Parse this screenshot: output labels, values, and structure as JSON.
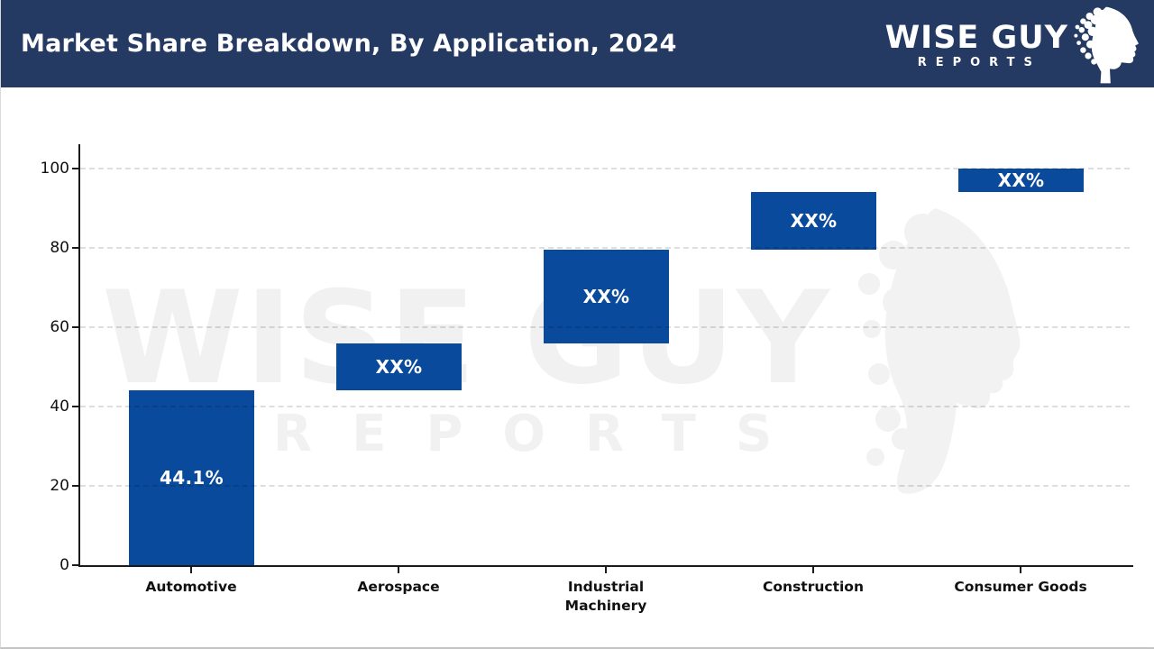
{
  "header": {
    "title": "Market Share Breakdown, By Application, 2024",
    "logo": {
      "name": "WISE GUY",
      "sub": "REPORTS"
    }
  },
  "watermark": {
    "line1": "WISE GUY",
    "line2": "REPORTS"
  },
  "colors": {
    "header_bg": "#243a63",
    "bar": "#0a4a9c",
    "bar_label": "#ffffff",
    "axis": "#1a1a1a",
    "gridline": "#d9d9d9",
    "watermark": "#f1f1f1"
  },
  "chart_data": {
    "type": "bar",
    "subtype": "waterfall",
    "title": "Market Share Breakdown, By Application, 2024",
    "unit": "%",
    "ylim": [
      0,
      100
    ],
    "yticks": [
      "0",
      "20",
      "40",
      "60",
      "80",
      "100"
    ],
    "grid": "horizontal-dashed",
    "legend": "none",
    "categories": [
      "Automotive",
      "Aerospace",
      "Industrial Machinery",
      "Construction",
      "Consumer Goods"
    ],
    "x_tick_label_lines": [
      [
        "Automotive"
      ],
      [
        "Aerospace"
      ],
      [
        "Industrial",
        "Machinery"
      ],
      [
        "Construction"
      ],
      [
        "Consumer Goods"
      ]
    ],
    "segments": [
      {
        "category": "Automotive",
        "start": 0,
        "end": 44.1,
        "value": 44.1,
        "label": "44.1%"
      },
      {
        "category": "Aerospace",
        "start": 44.1,
        "end": 55.9,
        "value": 11.8,
        "label": "XX%"
      },
      {
        "category": "Industrial Machinery",
        "start": 55.9,
        "end": 79.5,
        "value": 23.6,
        "label": "XX%"
      },
      {
        "category": "Construction",
        "start": 79.5,
        "end": 94.1,
        "value": 14.6,
        "label": "XX%"
      },
      {
        "category": "Consumer Goods",
        "start": 94.1,
        "end": 100.0,
        "value": 5.9,
        "label": "XX%"
      }
    ]
  }
}
